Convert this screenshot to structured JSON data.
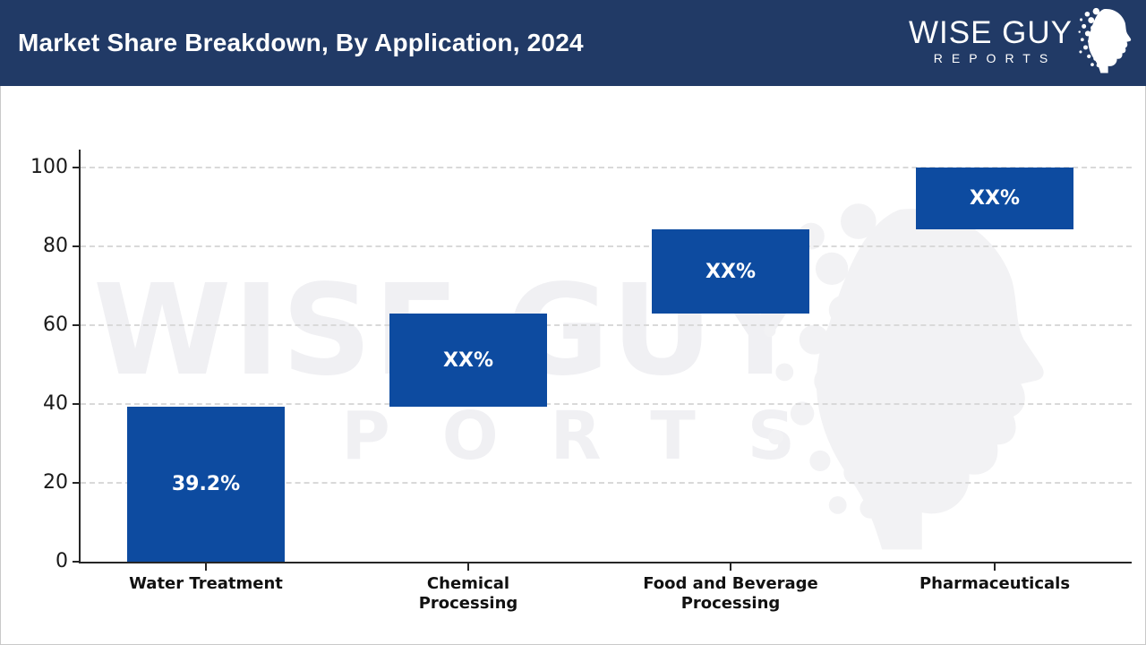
{
  "header": {
    "title": "Market Share Breakdown, By Application, 2024",
    "bg_color": "#213a66",
    "logo": {
      "wordmark": "WISE GUY",
      "subtext": "REPORTS"
    }
  },
  "watermark": {
    "line1": "WISE GUY",
    "line2": "REPORTS"
  },
  "chart_data": {
    "type": "bar",
    "subtype": "waterfall",
    "title": "Market Share Breakdown, By Application, 2024",
    "categories": [
      "Water Treatment",
      "Chemical Processing",
      "Food and Beverage Processing",
      "Pharmaceuticals"
    ],
    "category_label_lines": [
      [
        "Water Treatment"
      ],
      [
        "Chemical",
        "Processing"
      ],
      [
        "Food and Beverage",
        "Processing"
      ],
      [
        "Pharmaceuticals"
      ]
    ],
    "segments": [
      {
        "category": "Water Treatment",
        "from": 0,
        "to": 39.2,
        "label": "39.2%"
      },
      {
        "category": "Chemical Processing",
        "from": 39.2,
        "to": 62.8,
        "label": "XX%"
      },
      {
        "category": "Food and Beverage Processing",
        "from": 62.8,
        "to": 84.2,
        "label": "XX%"
      },
      {
        "category": "Pharmaceuticals",
        "from": 84.2,
        "to": 100,
        "label": "XX%"
      }
    ],
    "ylim": [
      0,
      100
    ],
    "yticks": [
      0,
      20,
      40,
      60,
      80,
      100
    ],
    "xlabel": "",
    "ylabel": "",
    "legend": "none",
    "grid": {
      "horizontal": true,
      "style": "dashed",
      "color": "#d9d9d9"
    },
    "colors": {
      "bar": "#0d4ba0",
      "bar_label": "#ffffff",
      "axis": "#262626",
      "tick_label": "#1a1a1a"
    }
  }
}
